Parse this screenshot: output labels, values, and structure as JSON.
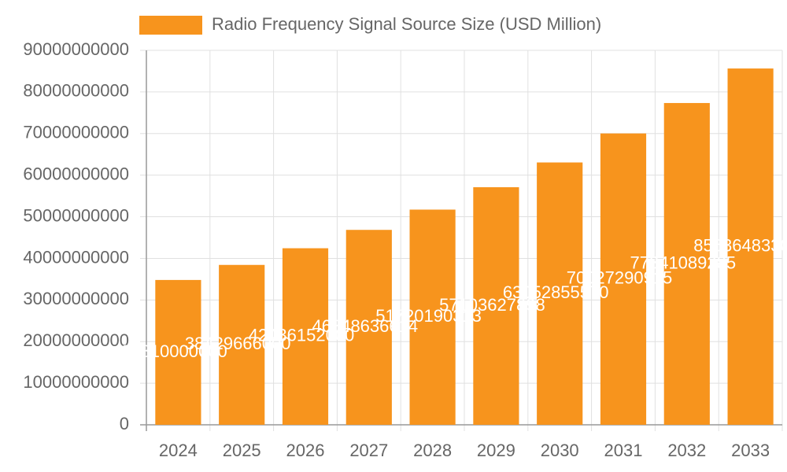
{
  "chart_data": {
    "type": "bar",
    "legend_label": "Radio Frequency Signal Source Size (USD Million)",
    "categories": [
      "2024",
      "2025",
      "2026",
      "2027",
      "2028",
      "2029",
      "2030",
      "2031",
      "2032",
      "2033"
    ],
    "values": [
      34810000000,
      38429666000,
      42436152000,
      46848636614,
      51720190313,
      57103627898,
      63052855570,
      70027290915,
      77341089285,
      85636483300
    ],
    "color": "#f7941d",
    "ylim": [
      0,
      90000000000
    ],
    "yticks": [
      0,
      10000000000,
      20000000000,
      30000000000,
      40000000000,
      50000000000,
      60000000000,
      70000000000,
      80000000000,
      90000000000
    ],
    "grid": true
  }
}
